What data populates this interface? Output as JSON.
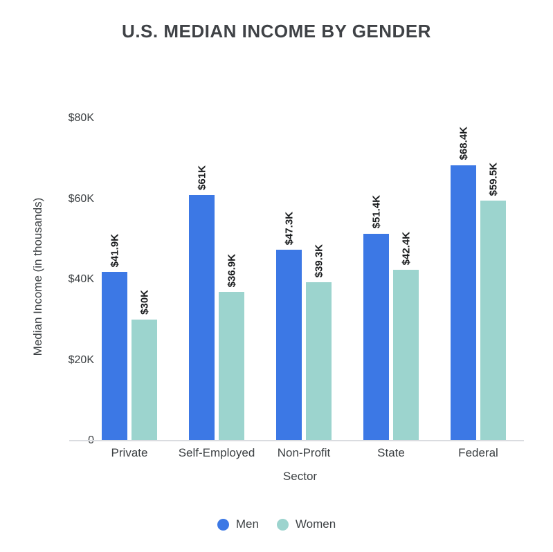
{
  "chart_data": {
    "type": "bar",
    "title": "U.S. MEDIAN INCOME BY GENDER",
    "xlabel": "Sector",
    "ylabel": "Median Income (in thousands)",
    "categories": [
      "Private",
      "Self-Employed",
      "Non-Profit",
      "State",
      "Federal"
    ],
    "series": [
      {
        "name": "Men",
        "color": "#3c78e5",
        "values": [
          41.9,
          61,
          47.3,
          51.4,
          68.4
        ],
        "labels": [
          "$41.9K",
          "$61K",
          "$47.3K",
          "$51.4K",
          "$68.4K"
        ]
      },
      {
        "name": "Women",
        "color": "#9cd4ce",
        "values": [
          30,
          36.9,
          39.3,
          42.4,
          59.5
        ],
        "labels": [
          "$30K",
          "$36.9K",
          "$39.3K",
          "$42.4K",
          "$59.5K"
        ]
      }
    ],
    "ylim": [
      0,
      80
    ],
    "yticks": [
      {
        "value": 80,
        "label": "$80K"
      },
      {
        "value": 60,
        "label": "$60K"
      },
      {
        "value": 40,
        "label": "$40K"
      },
      {
        "value": 20,
        "label": "$20K"
      },
      {
        "value": 0,
        "label": "0"
      }
    ],
    "grid": false,
    "legend_position": "bottom"
  },
  "colors": {
    "background": "#ffffff",
    "title_text": "#3f4246",
    "axis_text": "#3c4043",
    "value_label_text": "#1a1c1e",
    "baseline": "#dadce0",
    "men": "#3c78e5",
    "women": "#9cd4ce"
  }
}
